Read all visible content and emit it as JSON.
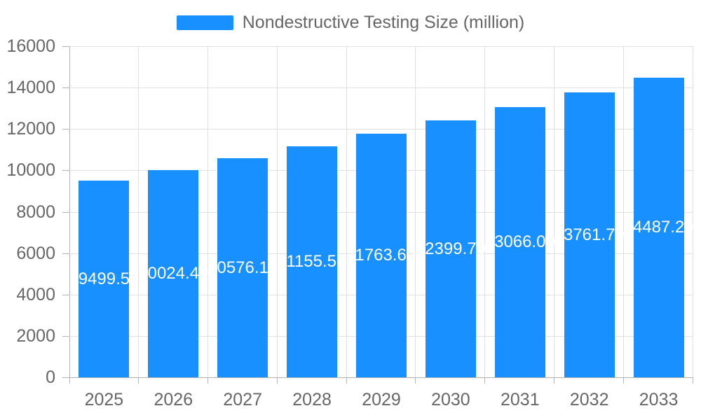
{
  "legend": {
    "label": "Nondestructive Testing Size (million)"
  },
  "colors": {
    "bar": "#1890FF",
    "bar_label_text": "#FFFFFF",
    "axis_line": "#B3B3B3",
    "gridline": "#E0E0E0",
    "axis_text": "#666666",
    "legend_text": "#666666",
    "page_bg": "#FFFFFF"
  },
  "chart_data": {
    "type": "bar",
    "title": "",
    "series_name": "Nondestructive Testing Size (million)",
    "categories": [
      "2025",
      "2026",
      "2027",
      "2028",
      "2029",
      "2030",
      "2031",
      "2032",
      "2033"
    ],
    "values": [
      9499.5,
      10024.4,
      10576.1,
      11155.5,
      11763.6,
      12399.7,
      13066.0,
      13761.7,
      14487.2
    ],
    "bar_label_decimals": [
      1,
      2,
      2,
      2,
      2,
      2,
      2,
      2,
      2
    ],
    "xlabel": "",
    "ylabel": "",
    "ylim": [
      0,
      16000
    ],
    "ytick_step": 2000,
    "grid": true,
    "legend_position": "top",
    "bar_label_position": "inside-center"
  }
}
